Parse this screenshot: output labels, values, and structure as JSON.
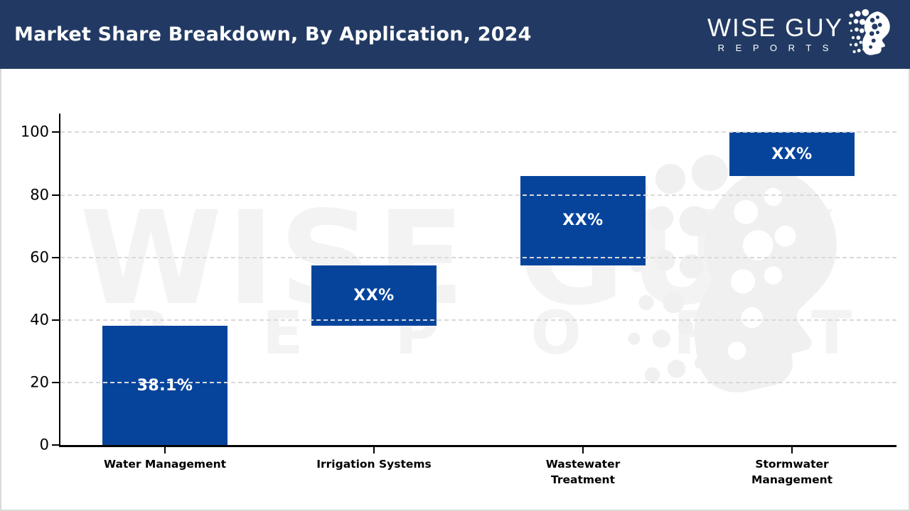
{
  "header": {
    "title": "Market Share Breakdown, By Application, 2024",
    "bg_color": "#223A63",
    "logo": {
      "wordmark": "WISE GUY",
      "subtitle": "R E P O R T S"
    }
  },
  "watermark": {
    "line1": "WISE GUY",
    "line2": "R E P O R T S"
  },
  "chart_data": {
    "type": "bar",
    "subtype": "waterfall",
    "title": "Market Share Breakdown, By Application, 2024",
    "categories": [
      "Water Management",
      "Irrigation Systems",
      "Wastewater Treatment",
      "Stormwater Management"
    ],
    "tick_labels": [
      "Water Management",
      "Irrigation Systems",
      "Wastewater\nTreatment",
      "Stormwater\nManagement"
    ],
    "bars": [
      {
        "category": "Water Management",
        "start": 0,
        "end": 38.1,
        "label": "38.1%"
      },
      {
        "category": "Irrigation Systems",
        "start": 38.1,
        "end": 57.5,
        "label": "XX%"
      },
      {
        "category": "Wastewater Treatment",
        "start": 57.5,
        "end": 86,
        "label": "XX%"
      },
      {
        "category": "Stormwater Management",
        "start": 86,
        "end": 100,
        "label": "XX%"
      }
    ],
    "y_ticks": [
      0,
      20,
      40,
      60,
      80,
      100
    ],
    "ylim": [
      0,
      106
    ],
    "xlabel": "",
    "ylabel": "",
    "grid": true,
    "gridline_color": "#d9d9d9",
    "bar_color": "#06449C",
    "bar_label_color": "#ffffff",
    "axis_color": "#000000",
    "legend": false
  }
}
